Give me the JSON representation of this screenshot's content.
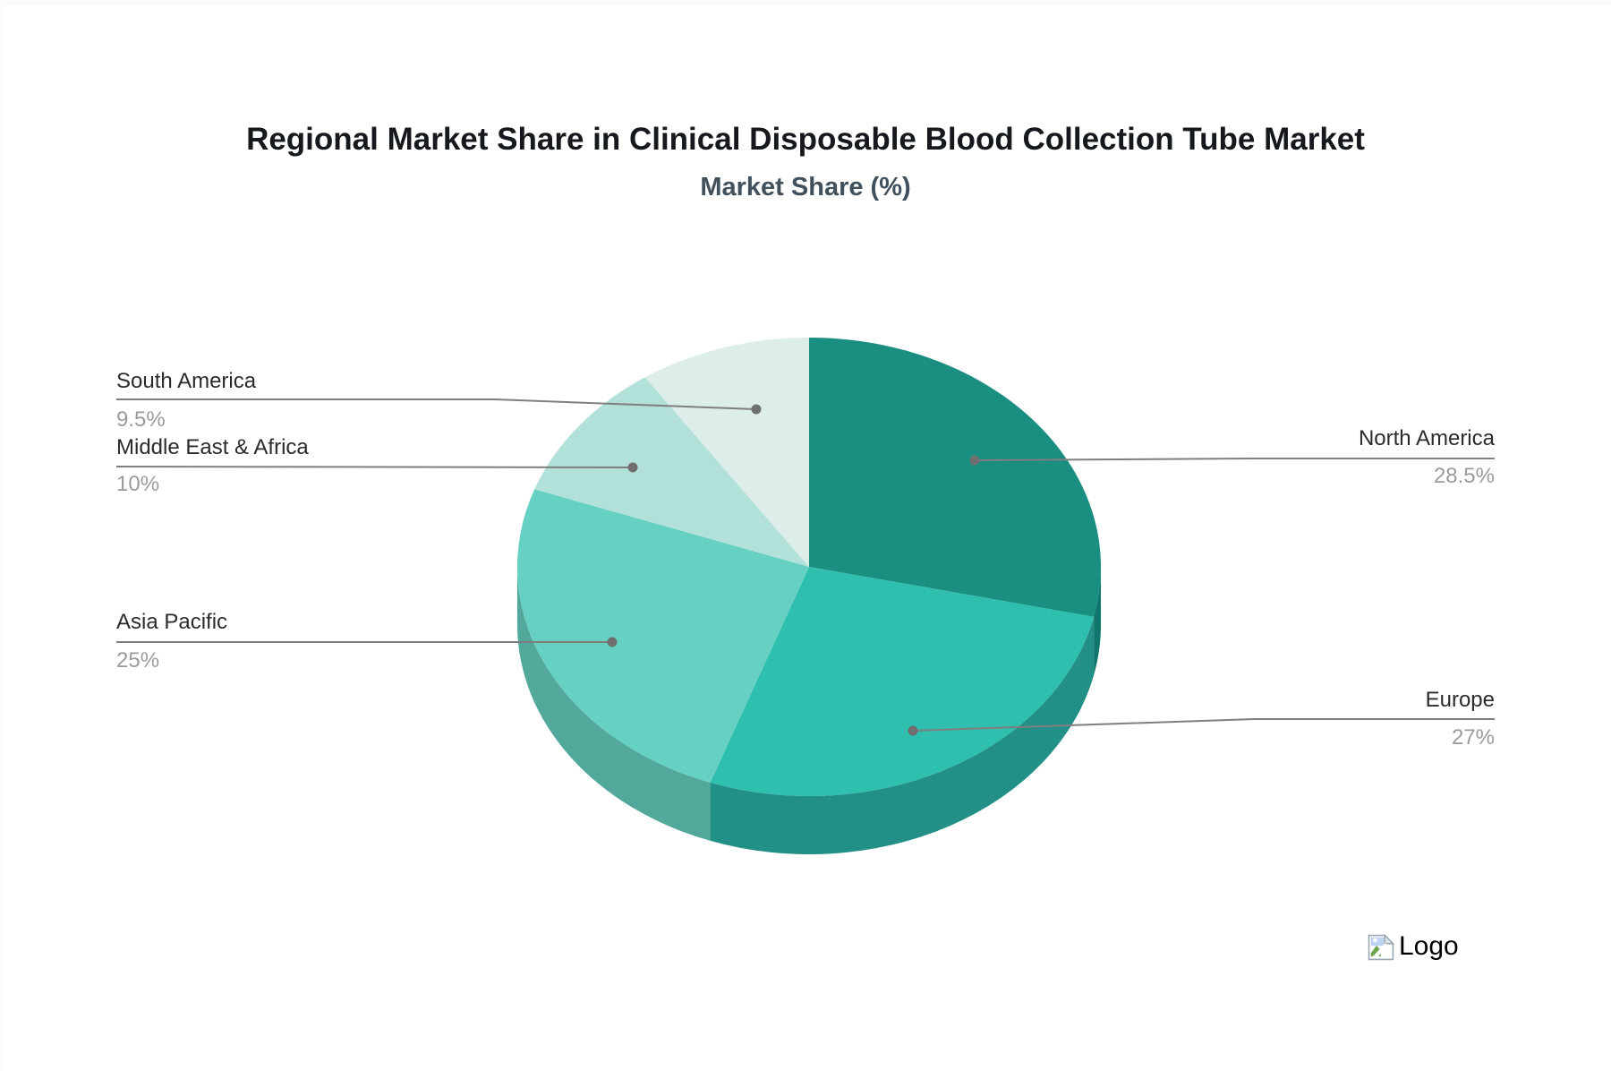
{
  "header": {
    "title": "Regional Market Share in Clinical Disposable Blood Collection Tube Market",
    "subtitle": "Market Share (%)"
  },
  "chart_data": {
    "type": "pie",
    "style": "3d",
    "title": "Regional Market Share in Clinical Disposable Blood Collection Tube Market",
    "subtitle": "Market Share (%)",
    "unit": "%",
    "start_angle_deg": 0,
    "direction": "clockwise",
    "legend": "none (leader-line labels)",
    "slices": [
      {
        "label": "North America",
        "value": 28.5,
        "display": "28.5%",
        "color": "#1a8e80",
        "side_color": "#10756b"
      },
      {
        "label": "Europe",
        "value": 27,
        "display": "27%",
        "color": "#2ebfae",
        "side_color": "#229086"
      },
      {
        "label": "Asia Pacific",
        "value": 25,
        "display": "25%",
        "color": "#66d0c2",
        "side_color": "#52a89b"
      },
      {
        "label": "Middle East & Africa",
        "value": 10,
        "display": "10%",
        "color": "#b2e1d9",
        "side_color": "#8fbab2"
      },
      {
        "label": "South America",
        "value": 9.5,
        "display": "9.5%",
        "color": "#dcedea",
        "side_color": "#b3c8c4"
      }
    ],
    "label_name_color": "#2b2b2b",
    "label_value_color": "#9b9b9b",
    "leader_line_color": "#7f7f7f",
    "leader_dot_color": "#6f6f6f"
  },
  "footer": {
    "logo_text": "Logo",
    "logo_icon": "broken-image-icon"
  }
}
